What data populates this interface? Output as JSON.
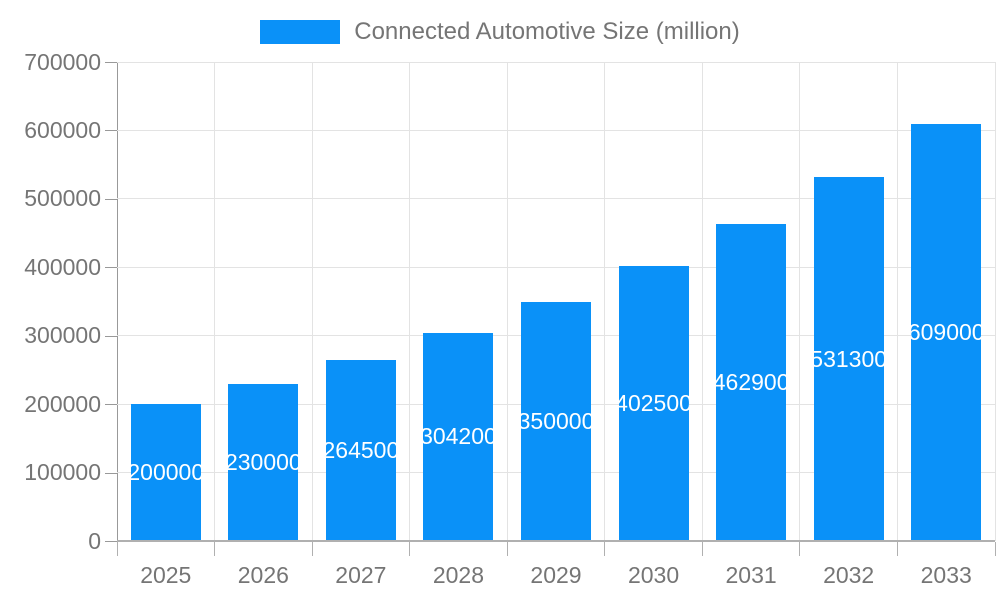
{
  "legend": {
    "label": "Connected Automotive Size (million)"
  },
  "colors": {
    "bar": "#0a91f8",
    "bar_label_text": "#ffffff",
    "axis_text": "#757575",
    "gridline": "#e3e3e3",
    "y_axis_line": "#999999",
    "x_axis_line": "#b0b0b0",
    "background": "#ffffff"
  },
  "chart_data": {
    "type": "bar",
    "title": "Connected Automotive Size (million)",
    "legend_position": "top",
    "legend_entries": [
      "Connected Automotive Size (million)"
    ],
    "categories": [
      "2025",
      "2026",
      "2027",
      "2028",
      "2029",
      "2030",
      "2031",
      "2032",
      "2033"
    ],
    "series": [
      {
        "name": "Connected Automotive Size (million)",
        "values": [
          200000,
          230000,
          264500,
          304200,
          350000,
          402500,
          462900,
          531300,
          609000
        ]
      }
    ],
    "bar_value_labels": [
      "200000",
      "230000",
      "264500",
      "304200",
      "350000",
      "402500",
      "462900",
      "531300",
      "609000"
    ],
    "xlabel": "",
    "ylabel": "",
    "ylim": [
      0,
      700000
    ],
    "y_ticks": [
      0,
      100000,
      200000,
      300000,
      400000,
      500000,
      600000,
      700000
    ],
    "grid": true
  }
}
